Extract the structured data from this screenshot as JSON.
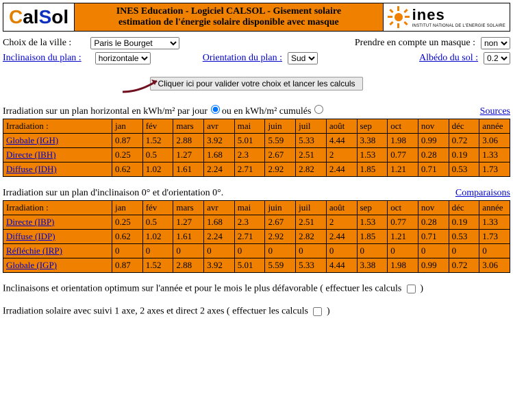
{
  "header": {
    "title_line1": "INES Education - Logiciel CALSOL - Gisement solaire",
    "title_line2": "estimation de l'énergie solaire disponible avec masque",
    "logo_parts": {
      "C": "C",
      "al": "al",
      "S": "S",
      "ol": "ol"
    },
    "ines_big": "ines",
    "ines_small": "INSTITUT NATIONAL DE L'ENERGIE SOLAIRE"
  },
  "controls": {
    "city_label": "Choix de la ville :",
    "city_value": "Paris le Bourget",
    "mask_label": "Prendre en compte un masque :",
    "mask_value": "non",
    "incl_label": "Inclinaison du plan :",
    "incl_value": "horizontale",
    "orient_label": "Orientation du plan :",
    "orient_value": "Sud",
    "albedo_label": "Albédo du sol :",
    "albedo_value": "0.2"
  },
  "calc_button": "Cliquer ici pour valider votre choix et lancer les calculs",
  "section1": {
    "prefix": "Irradiation sur un plan horizontal en kWh/m² par jour ",
    "suffix": "  ou en kWh/m² cumulés ",
    "sources": "Sources"
  },
  "months_header": "Irradiation :",
  "months": [
    "jan",
    "fév",
    "mars",
    "avr",
    "mai",
    "juin",
    "juil",
    "août",
    "sep",
    "oct",
    "nov",
    "déc",
    "année"
  ],
  "table1_rows": [
    {
      "label": "Globale (IGH)",
      "v": [
        "0.87",
        "1.52",
        "2.88",
        "3.92",
        "5.01",
        "5.59",
        "5.33",
        "4.44",
        "3.38",
        "1.98",
        "0.99",
        "0.72",
        "3.06"
      ]
    },
    {
      "label": "Directe (IBH)",
      "v": [
        "0.25",
        "0.5",
        "1.27",
        "1.68",
        "2.3",
        "2.67",
        "2.51",
        "2",
        "1.53",
        "0.77",
        "0.28",
        "0.19",
        "1.33"
      ]
    },
    {
      "label": "Diffuse (IDH)",
      "v": [
        "0.62",
        "1.02",
        "1.61",
        "2.24",
        "2.71",
        "2.92",
        "2.82",
        "2.44",
        "1.85",
        "1.21",
        "0.71",
        "0.53",
        "1.73"
      ]
    }
  ],
  "section2": {
    "title": "Irradiation sur un plan d'inclinaison 0° et d'orientation 0°.",
    "compare": "Comparaisons"
  },
  "table2_rows": [
    {
      "label": "Directe (IBP)",
      "v": [
        "0.25",
        "0.5",
        "1.27",
        "1.68",
        "2.3",
        "2.67",
        "2.51",
        "2",
        "1.53",
        "0.77",
        "0.28",
        "0.19",
        "1.33"
      ]
    },
    {
      "label": "Diffuse (IDP)",
      "v": [
        "0.62",
        "1.02",
        "1.61",
        "2.24",
        "2.71",
        "2.92",
        "2.82",
        "2.44",
        "1.85",
        "1.21",
        "0.71",
        "0.53",
        "1.73"
      ]
    },
    {
      "label": "Réfléchie (IRP)",
      "v": [
        "0",
        "0",
        "0",
        "0",
        "0",
        "0",
        "0",
        "0",
        "0",
        "0",
        "0",
        "0",
        "0"
      ]
    },
    {
      "label": "Globale (IGP)",
      "v": [
        "0.87",
        "1.52",
        "2.88",
        "3.92",
        "5.01",
        "5.59",
        "5.33",
        "4.44",
        "3.38",
        "1.98",
        "0.99",
        "0.72",
        "3.06"
      ]
    }
  ],
  "footer1": "Inclinaisons et orientation optimum sur l'année et pour le mois le plus défavorable ( effectuer les calculs ",
  "footer1_end": " )",
  "footer2": "Irradiation solaire avec suivi 1 axe, 2 axes et direct 2 axes ( effectuer les calculs ",
  "footer2_end": " )",
  "colors": {
    "orange": "#f08000",
    "link": "#0000cc",
    "bg": "#ffffff",
    "border": "#000000"
  }
}
